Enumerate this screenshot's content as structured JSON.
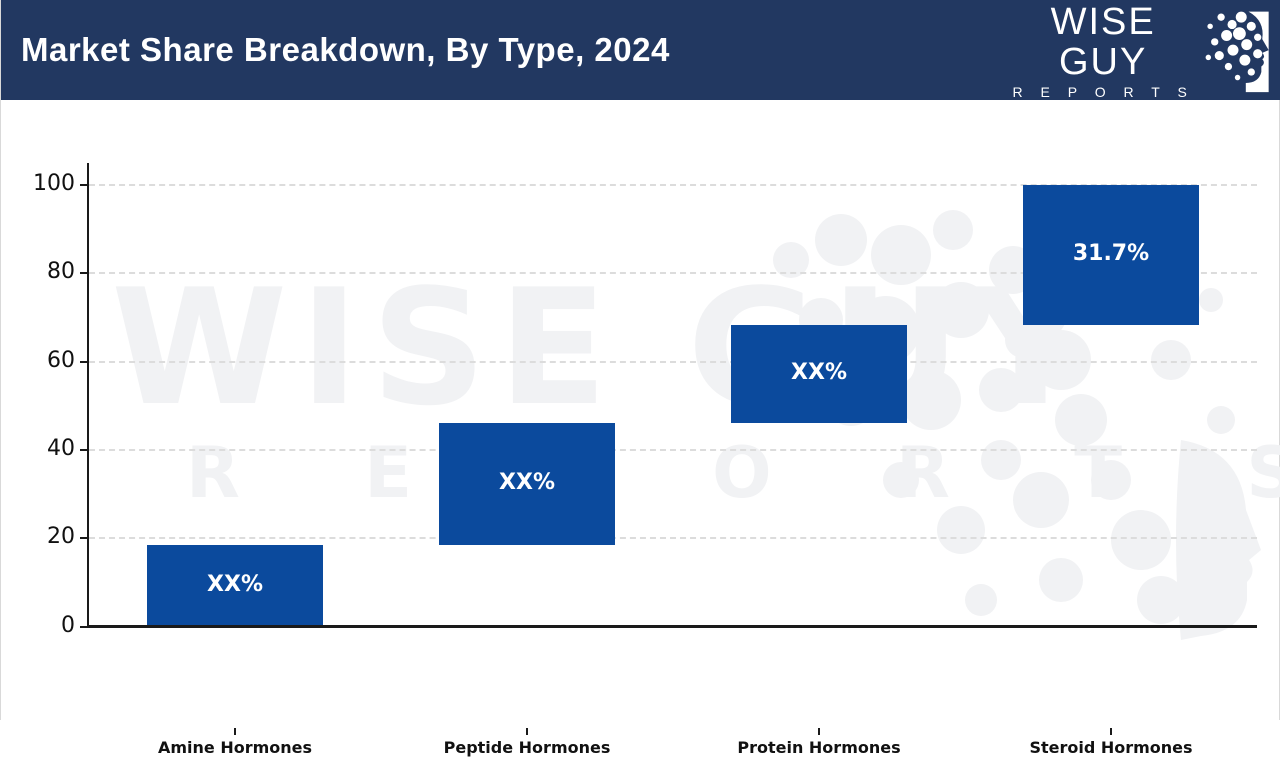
{
  "header": {
    "title": "Market Share Breakdown, By Type, 2024",
    "logo": {
      "line1": "WISE GUY",
      "line2": "R E P O R T S"
    }
  },
  "watermark": {
    "line1": "WISE GUY",
    "line2": "R E P O R T S"
  },
  "chart_data": {
    "type": "bar",
    "subtype": "waterfall-stacked-breakdown",
    "title": "Market Share Breakdown, By Type, 2024",
    "categories": [
      "Amine Hormones",
      "Peptide Hormones",
      "Protein Hormones",
      "Steroid Hormones"
    ],
    "segments": [
      {
        "category": "Amine Hormones",
        "start": 0,
        "end": 18.5,
        "label": "XX%",
        "value_masked": true
      },
      {
        "category": "Peptide Hormones",
        "start": 18.5,
        "end": 46.1,
        "label": "XX%",
        "value_masked": true
      },
      {
        "category": "Protein Hormones",
        "start": 46.1,
        "end": 68.3,
        "label": "XX%",
        "value_masked": true
      },
      {
        "category": "Steroid Hormones",
        "start": 68.3,
        "end": 100,
        "label": "31.7%",
        "value_masked": false,
        "value": 31.7
      }
    ],
    "xlabel": "",
    "ylabel": "",
    "ylim": [
      0,
      100
    ],
    "yticks": [
      0,
      20,
      40,
      60,
      80,
      100
    ],
    "grid": "horizontal-dashed",
    "legend": "none",
    "bar_color": "#0b4a9d",
    "bar_label_color": "#ffffff"
  },
  "colors": {
    "header_bg": "#223861",
    "bar": "#0b4a9d",
    "grid": "#dcdcdc",
    "axis": "#1a1a1a",
    "watermark": "#f1f2f4",
    "page_bg": "#ffffff"
  }
}
